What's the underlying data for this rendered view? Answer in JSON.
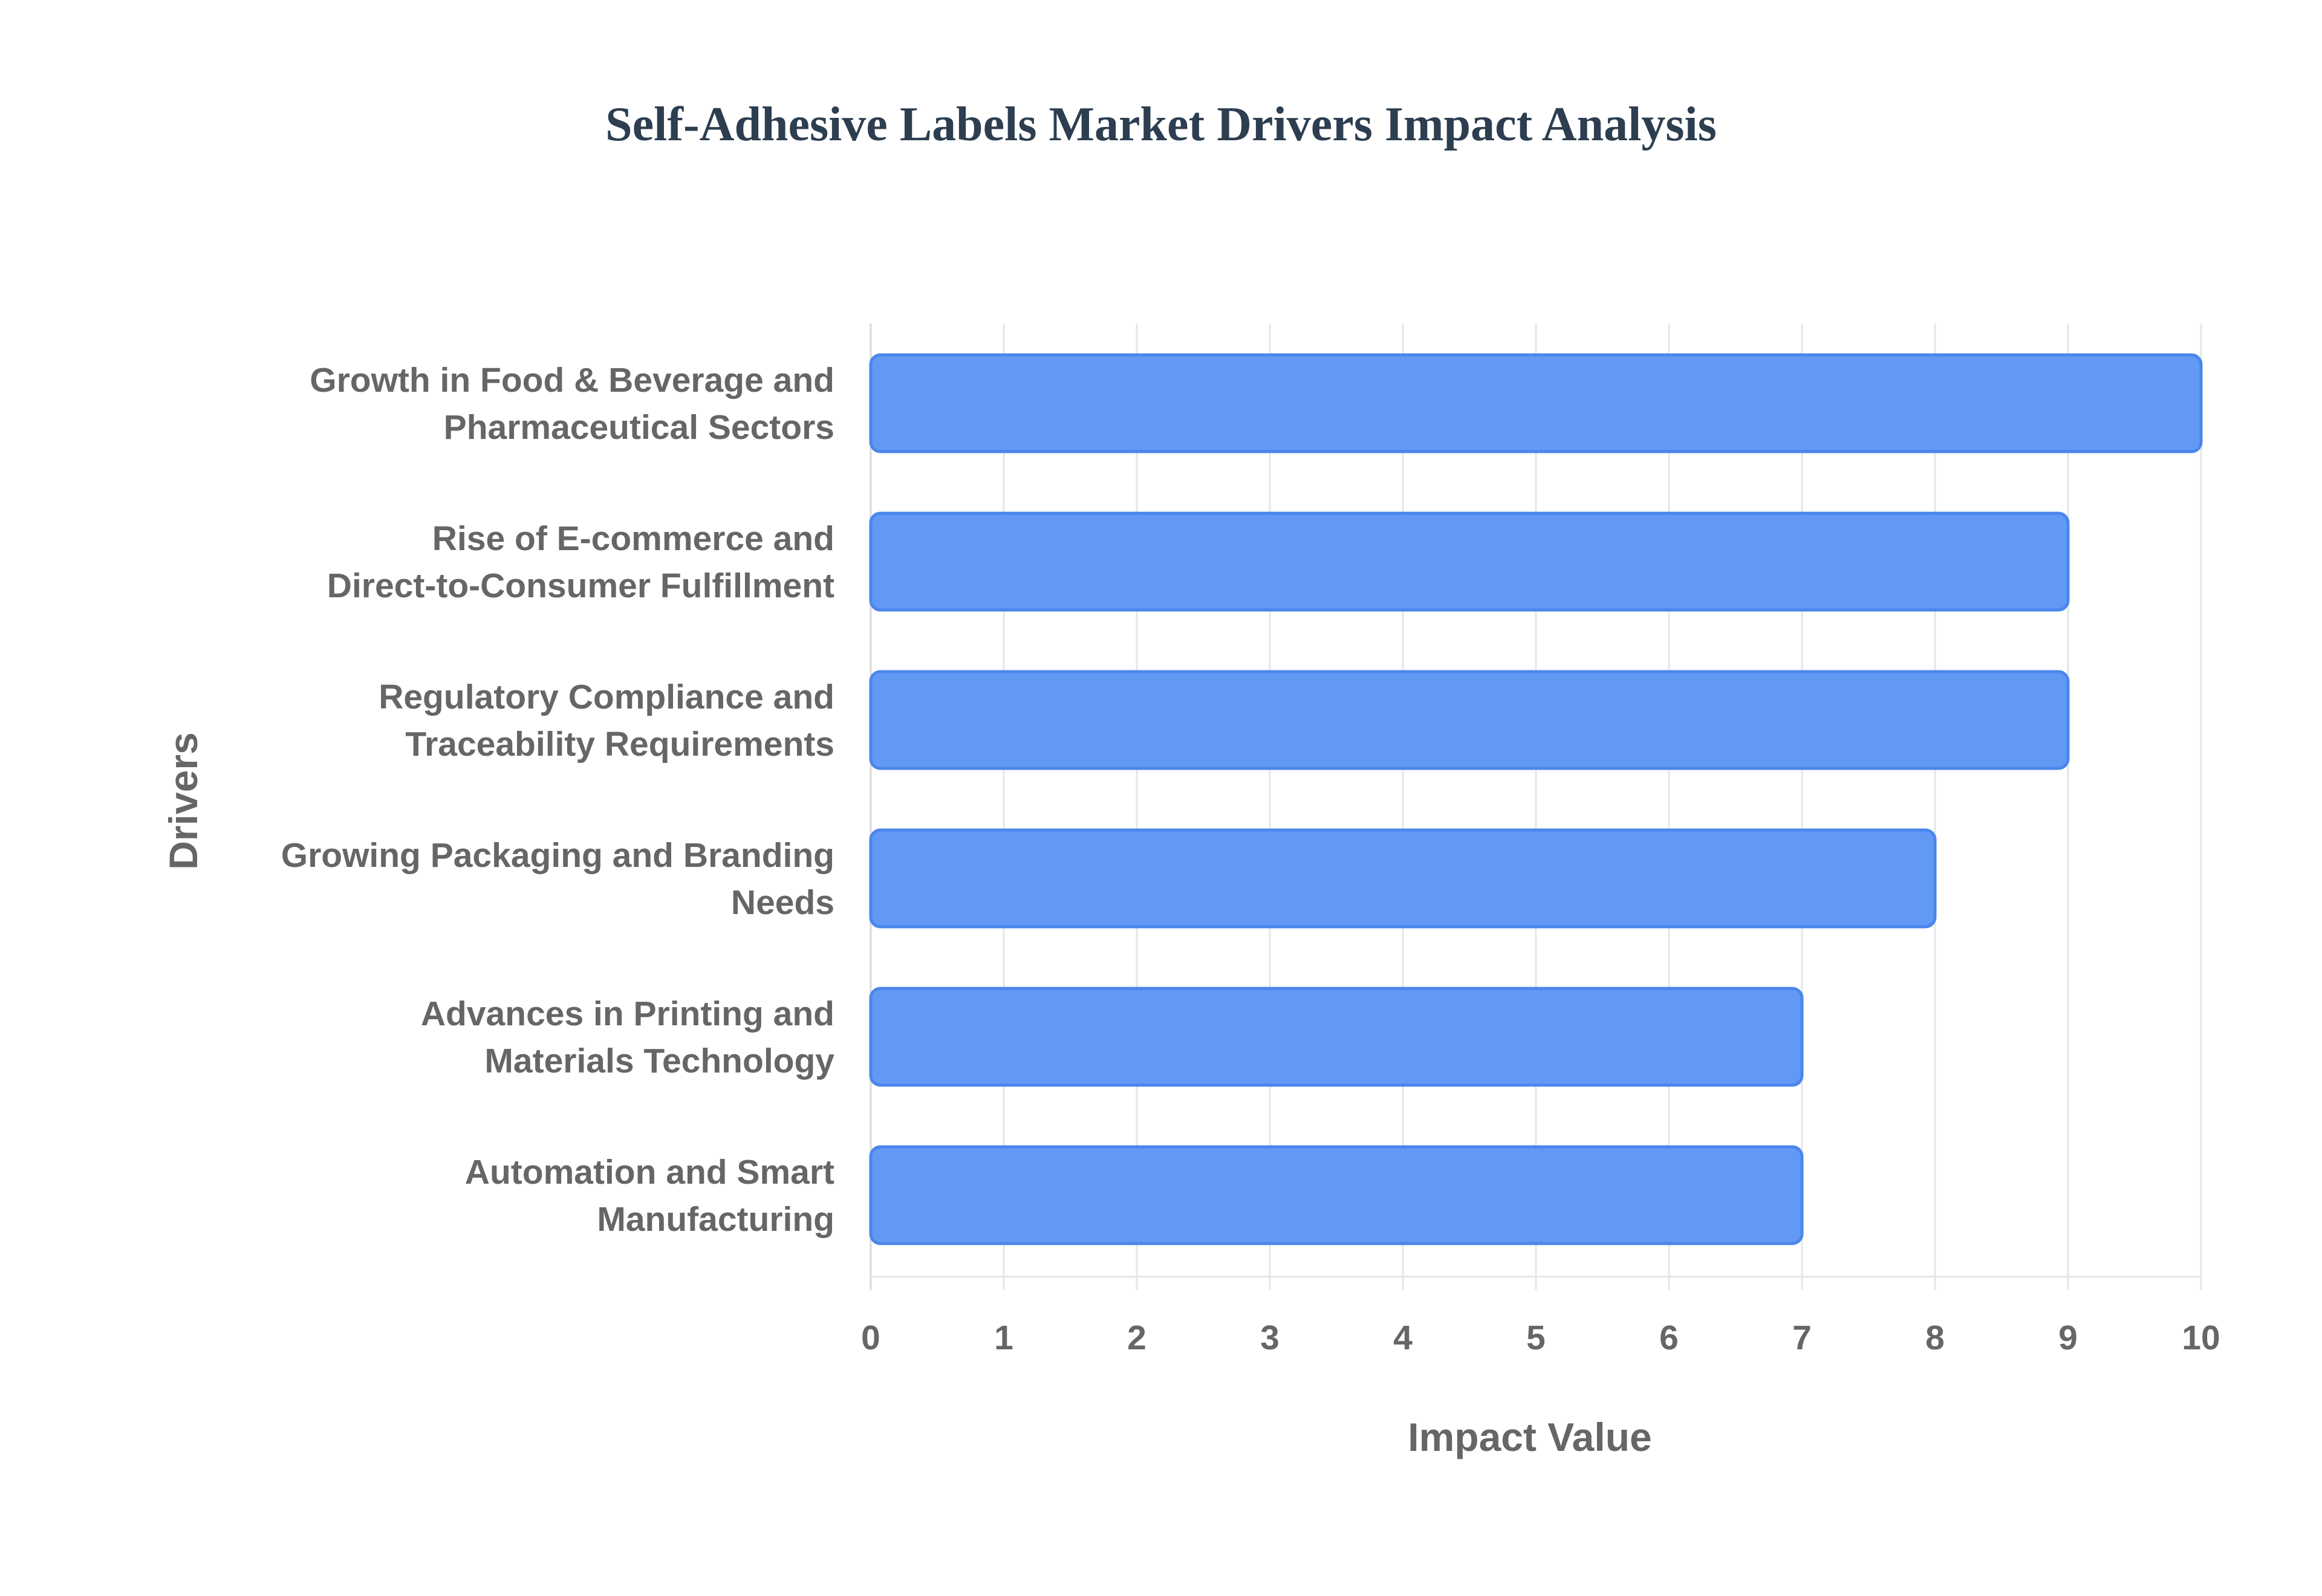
{
  "chart_data": {
    "type": "bar",
    "orientation": "horizontal",
    "title": "Self-Adhesive Labels Market Drivers Impact Analysis",
    "xlabel": "Impact Value",
    "ylabel": "Drivers",
    "xlim": [
      0,
      10
    ],
    "xticks": [
      "0",
      "1",
      "2",
      "3",
      "4",
      "5",
      "6",
      "7",
      "8",
      "9",
      "10"
    ],
    "grid": true,
    "legend": "none",
    "categories": [
      [
        "Growth in Food & Beverage and",
        "Pharmaceutical Sectors"
      ],
      [
        "Rise of E-commerce and",
        "Direct-to-Consumer Fulfillment"
      ],
      [
        "Regulatory Compliance and",
        "Traceability Requirements"
      ],
      [
        "Growing Packaging and Branding",
        "Needs"
      ],
      [
        "Advances in Printing and",
        "Materials Technology"
      ],
      [
        "Automation and Smart",
        "Manufacturing"
      ]
    ],
    "values": [
      10,
      9,
      9,
      8,
      7,
      7
    ]
  },
  "colors": {
    "title": "#2c3e50",
    "axis_text": "#666666",
    "bar_fill": "#6199f4",
    "bar_stroke": "#4a86eb",
    "grid": "#e6e6e6",
    "axis_line": "#d9d9d9"
  }
}
